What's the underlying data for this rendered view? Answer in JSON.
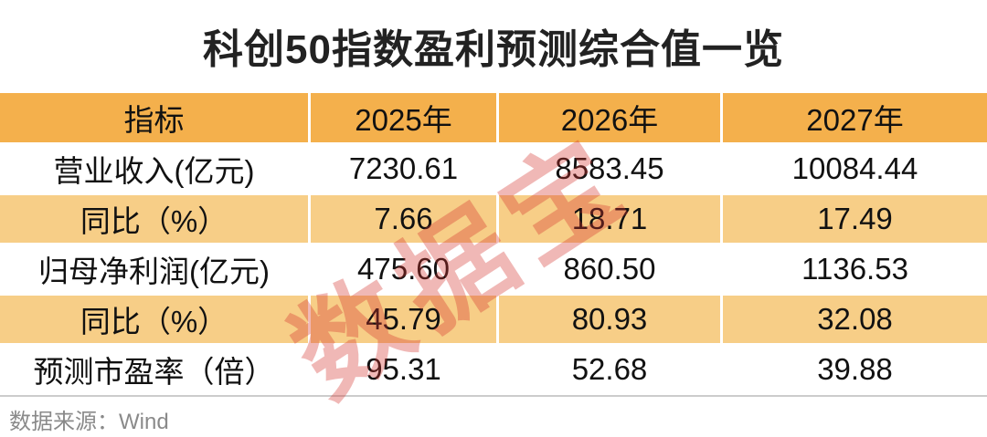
{
  "title": "科创50指数盈利预测综合值一览",
  "table": {
    "headers": [
      "指标",
      "2025年",
      "2026年",
      "2027年"
    ],
    "rows": [
      {
        "label": "营业收入(亿元)",
        "values": [
          "7230.61",
          "8583.45",
          "10084.44"
        ]
      },
      {
        "label": "同比（%）",
        "values": [
          "7.66",
          "18.71",
          "17.49"
        ]
      },
      {
        "label": "归母净利润(亿元)",
        "values": [
          "475.60",
          "860.50",
          "1136.53"
        ]
      },
      {
        "label": "同比（%）",
        "values": [
          "45.79",
          "80.93",
          "32.08"
        ]
      },
      {
        "label": "预测市盈率（倍）",
        "values": [
          "95.31",
          "52.68",
          "39.88"
        ]
      }
    ]
  },
  "watermark": "数据宝",
  "footer": {
    "source_label": "数据来源：Wind"
  },
  "colors": {
    "header_bg": "#F4B04C",
    "alt_row_bg": "#F7CE87",
    "watermark_color": "rgba(213, 52, 45, 0.35)"
  },
  "chart_data": {
    "type": "table",
    "title": "科创50指数盈利预测综合值一览",
    "categories": [
      "2025年",
      "2026年",
      "2027年"
    ],
    "series": [
      {
        "name": "营业收入(亿元)",
        "values": [
          7230.61,
          8583.45,
          10084.44
        ]
      },
      {
        "name": "同比（%）",
        "values": [
          7.66,
          18.71,
          17.49
        ]
      },
      {
        "name": "归母净利润(亿元)",
        "values": [
          475.6,
          860.5,
          1136.53
        ]
      },
      {
        "name": "同比（%）",
        "values": [
          45.79,
          80.93,
          32.08
        ]
      },
      {
        "name": "预测市盈率（倍）",
        "values": [
          95.31,
          52.68,
          39.88
        ]
      }
    ],
    "source": "Wind",
    "legend_position": "none",
    "grid": false
  }
}
